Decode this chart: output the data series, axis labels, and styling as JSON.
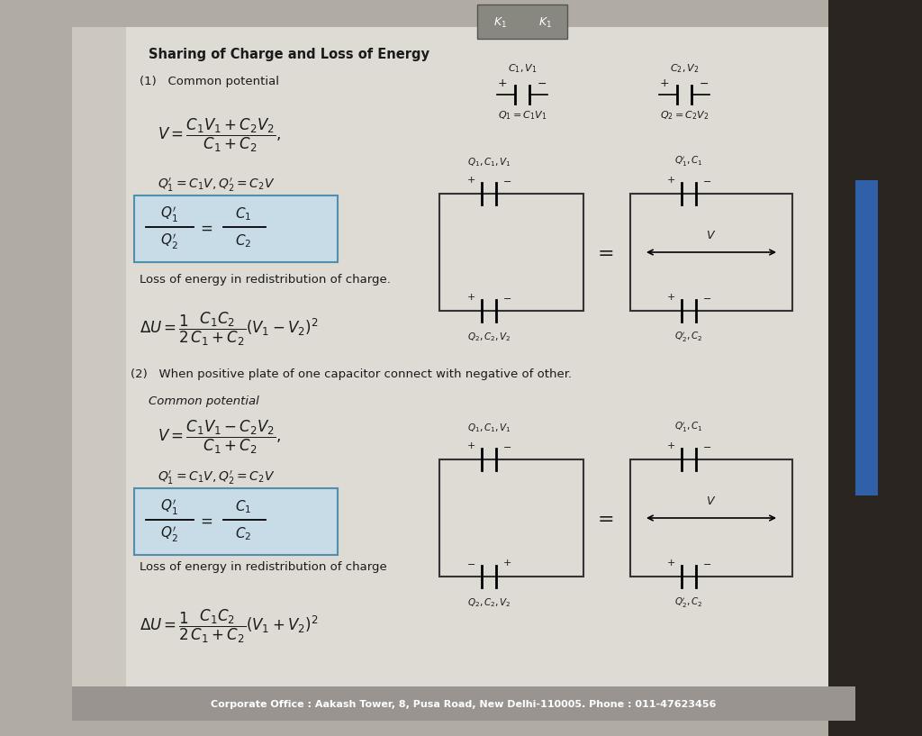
{
  "title": "Sharing of Charge and Loss of Energy",
  "bg_color_left": "#c8c4bc",
  "bg_color_right": "#3a3530",
  "paper_color": "#e8e4de",
  "footer_text": "Corporate Office : Aakash Tower, 8, Pusa Road, New Delhi-110005. Phone : 011-47623456",
  "footer_bg": "#999490",
  "section1_heading": "(1)   Common potential",
  "section1_v": "$V = \\dfrac{C_1V_1 + C_2V_2}{C_1 + C_2},$",
  "section1_q": "$Q_1' = C_1V, Q_2' = C_2V$",
  "section1_loss_text": "Loss of energy in redistribution of charge.",
  "section1_loss_formula": "$\\Delta U = \\dfrac{1}{2}\\dfrac{C_1C_2}{C_1+C_2}(V_1-V_2)^2$",
  "section2_heading": "(2)   When positive plate of one capacitor connect with negative of other.",
  "section2_sub": "Common potential",
  "section2_v": "$V = \\dfrac{C_1V_1 - C_2V_2}{C_1 + C_2},$",
  "section2_q": "$Q_1' = C_1V, Q_2' = C_2V$",
  "section2_loss_text": "Loss of energy in redistribution of charge",
  "section2_loss_formula": "$\\Delta U = \\dfrac{1}{2}\\dfrac{C_1C_2}{C_1+C_2}(V_1+V_2)^2$",
  "text_color": "#1a1a1a",
  "highlight_color": "#c8dce8",
  "highlight_edge": "#5090aa"
}
